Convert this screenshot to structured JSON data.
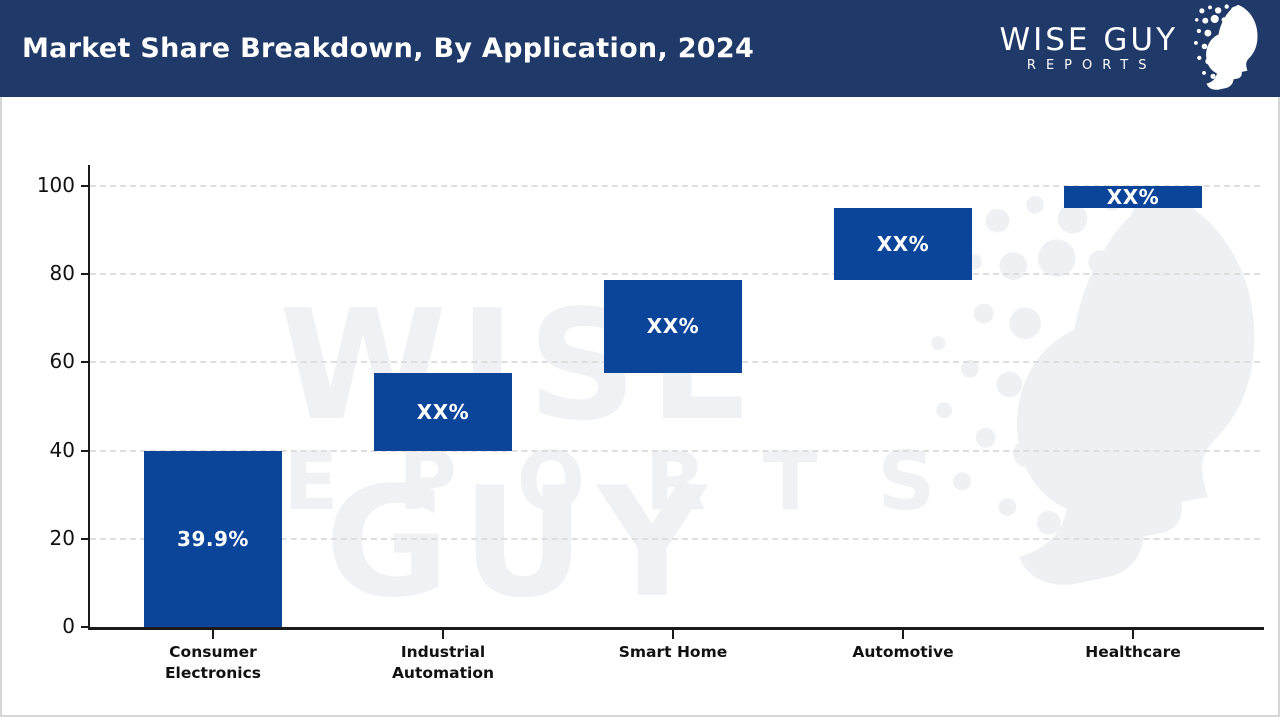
{
  "header": {
    "title": "Market Share Breakdown, By Application, 2024",
    "logo_line1": "WISE GUY",
    "logo_line2": "REPORTS"
  },
  "watermark": {
    "line1": "WISE GUY",
    "line2": "REPORTS"
  },
  "colors": {
    "header_bg": "#1f3a68",
    "bar": "#0b4599",
    "bar_label": "#ffffff",
    "grid": "#dedede",
    "axis": "#1a1a1a",
    "watermark": "#f0f1f4"
  },
  "chart_data": {
    "type": "bar",
    "subtype": "waterfall",
    "title": "Market Share Breakdown, By Application, 2024",
    "xlabel": "",
    "ylabel": "",
    "ylim": [
      0,
      105
    ],
    "yticks": [
      0,
      20,
      40,
      60,
      80,
      100
    ],
    "grid": "horizontal-dashed",
    "legend": "none",
    "categories": [
      "Consumer Electronics",
      "Industrial Automation",
      "Smart Home",
      "Automotive",
      "Healthcare"
    ],
    "category_lines": [
      [
        "Consumer",
        "Electronics"
      ],
      [
        "Industrial",
        "Automation"
      ],
      [
        "Smart Home"
      ],
      [
        "Automotive"
      ],
      [
        "Healthcare"
      ]
    ],
    "segments": [
      {
        "category": "Consumer Electronics",
        "start": 0,
        "end": 39.9,
        "label": "39.9%"
      },
      {
        "category": "Industrial Automation",
        "start": 39.9,
        "end": 57.7,
        "label": "XX%"
      },
      {
        "category": "Smart Home",
        "start": 57.7,
        "end": 78.6,
        "label": "XX%"
      },
      {
        "category": "Automotive",
        "start": 78.6,
        "end": 94.9,
        "label": "XX%"
      },
      {
        "category": "Healthcare",
        "start": 94.9,
        "end": 100,
        "label": "XX%"
      }
    ]
  }
}
